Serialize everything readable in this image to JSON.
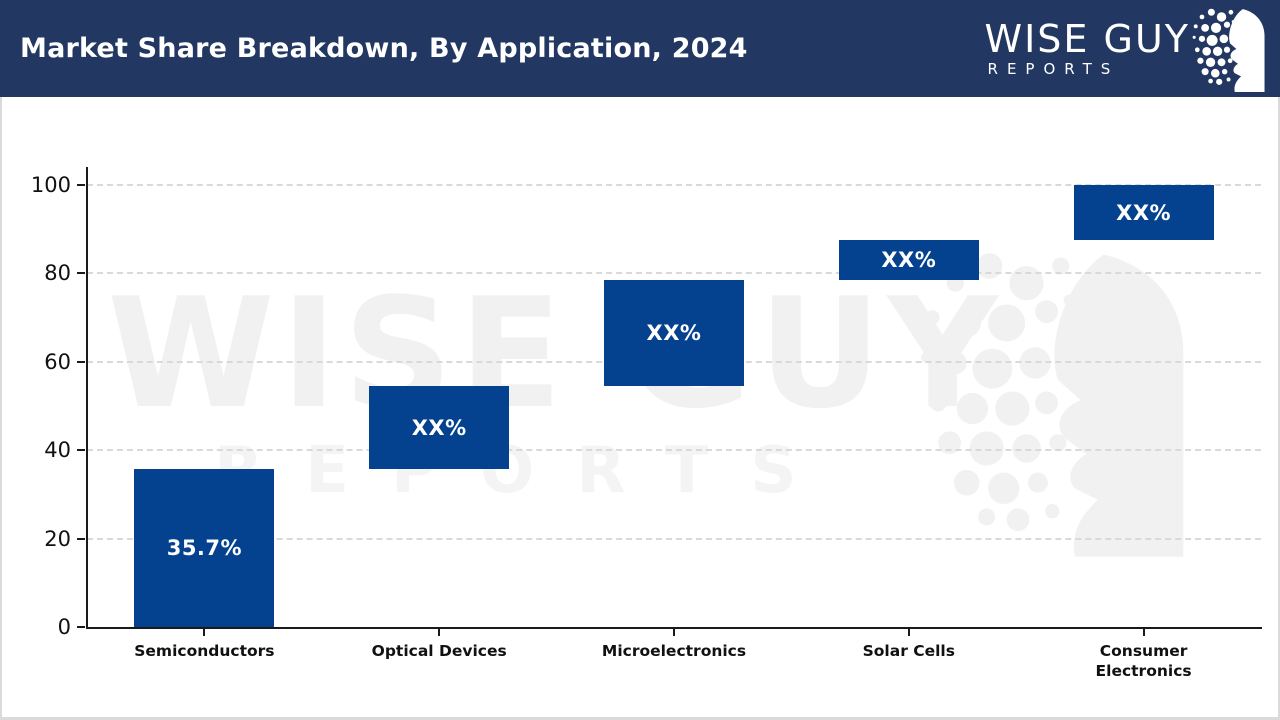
{
  "header": {
    "title": "Market Share Breakdown, By Application, 2024",
    "logo": {
      "wordmark": "WISE GUY",
      "subtext": "REPORTS"
    }
  },
  "watermark": {
    "line1": "WISE GUY",
    "line2": "REPORTS"
  },
  "colors": {
    "header_bg": "#223862",
    "bar": "#04418F",
    "bar_label": "#FFFFFF",
    "axis": "#1A1A1A",
    "gridline": "#D9D9D9",
    "watermark": "#F1F1F1",
    "figure_border": "#DADADA"
  },
  "chart_data": {
    "type": "bar",
    "subtype": "waterfall",
    "title": "Market Share Breakdown, By Application, 2024",
    "categories": [
      "Semiconductors",
      "Optical Devices",
      "Microelectronics",
      "Solar Cells",
      "Consumer Electronics"
    ],
    "category_lines": [
      [
        "Semiconductors"
      ],
      [
        "Optical Devices"
      ],
      [
        "Microelectronics"
      ],
      [
        "Solar Cells"
      ],
      [
        "Consumer",
        "Electronics"
      ]
    ],
    "series": [
      {
        "name": "Market Share (%)",
        "segments": [
          {
            "category": "Semiconductors",
            "start": 0,
            "end": 35.7,
            "label": "35.7%"
          },
          {
            "category": "Optical Devices",
            "start": 35.7,
            "end": 54.5,
            "label": "XX%"
          },
          {
            "category": "Microelectronics",
            "start": 54.5,
            "end": 78.5,
            "label": "XX%"
          },
          {
            "category": "Solar Cells",
            "start": 78.5,
            "end": 87.5,
            "label": "XX%"
          },
          {
            "category": "Consumer Electronics",
            "start": 87.5,
            "end": 100,
            "label": "XX%"
          }
        ]
      }
    ],
    "ylim": [
      0,
      100
    ],
    "yticks": [
      0,
      20,
      40,
      60,
      80,
      100
    ],
    "xlabel": "",
    "ylabel": "",
    "grid": {
      "axis": "y",
      "style": "dashed"
    },
    "legend": false
  }
}
